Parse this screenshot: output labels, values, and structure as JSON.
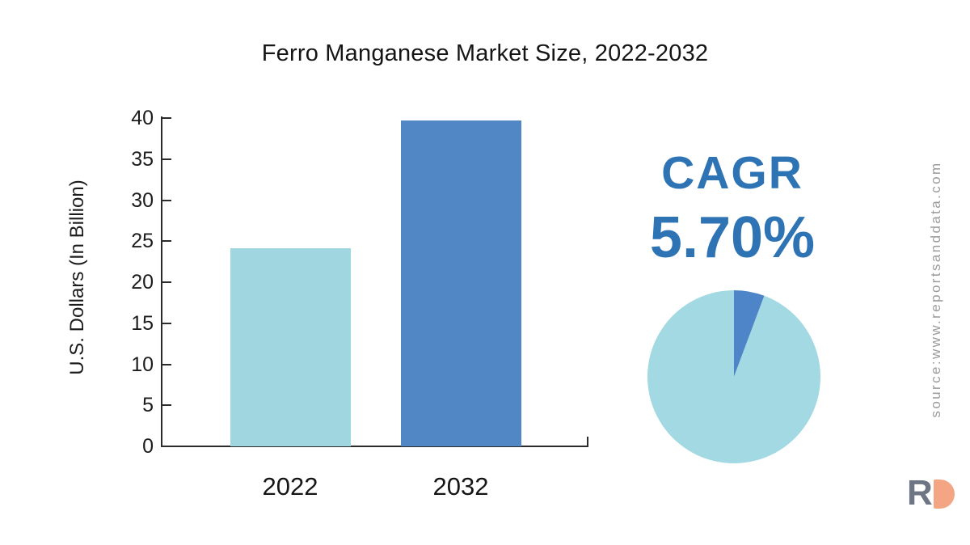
{
  "title": "Ferro Manganese Market Size, 2022-2032",
  "chart_data": [
    {
      "type": "bar",
      "title": "Ferro Manganese Market Size, 2022-2032",
      "categories": [
        "2022",
        "2032"
      ],
      "values": [
        24.1,
        39.7
      ],
      "xlabel": "",
      "ylabel": "U.S. Dollars (In Billion)",
      "ylim": [
        0,
        40
      ],
      "yticks": [
        0,
        5,
        10,
        15,
        20,
        25,
        30,
        35,
        40
      ],
      "bar_colors": [
        "#9fd6e0",
        "#5287c5"
      ],
      "grid": false,
      "legend": "none"
    },
    {
      "type": "pie",
      "title": "CAGR 5.70%",
      "labels": [
        "CAGR share",
        "remainder"
      ],
      "values": [
        5.7,
        94.3
      ],
      "colors": [
        "#4d85c8",
        "#a2d9e2"
      ],
      "start_angle_deg": 0,
      "legend": "none"
    }
  ],
  "cagr": {
    "label": "CAGR",
    "value": "5.70%"
  },
  "source_note": "source:www.reportsanddata.com",
  "logo": {
    "r_letter": "R"
  }
}
